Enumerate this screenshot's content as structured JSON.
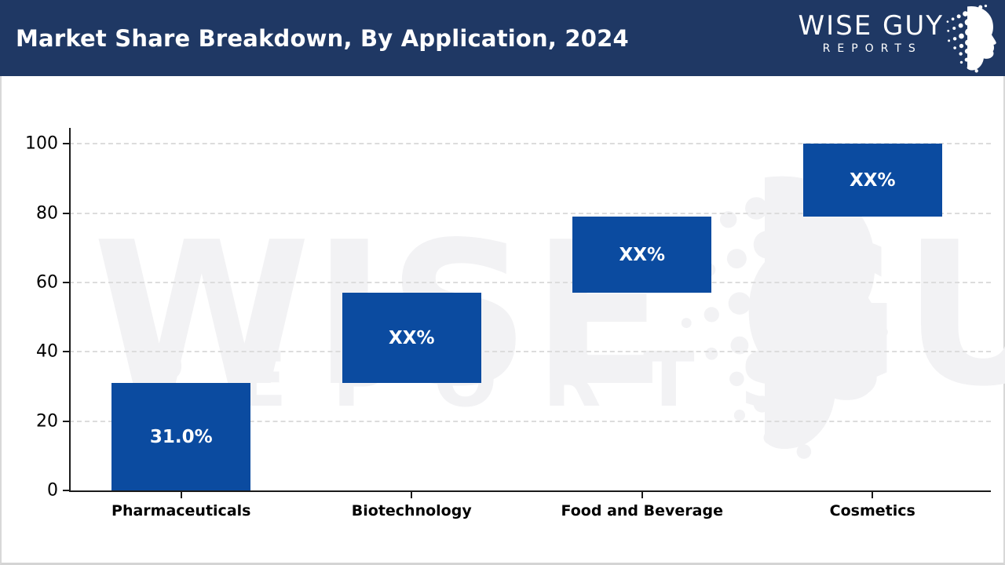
{
  "header": {
    "title": "Market Share Breakdown, By Application, 2024",
    "bg_color": "#1f3864",
    "logo": {
      "line1": "WISE GUY",
      "line2": "REPORTS"
    }
  },
  "watermark": {
    "line1": "WISE GUY",
    "line2": "REPORTS"
  },
  "chart_data": {
    "type": "bar",
    "variant": "waterfall",
    "title": "Market Share Breakdown, By Application, 2024",
    "categories": [
      "Pharmaceuticals",
      "Biotechnology",
      "Food and Beverage",
      "Cosmetics"
    ],
    "segments": [
      {
        "category": "Pharmaceuticals",
        "start": 0,
        "end": 31,
        "value": 31,
        "label": "31.0%"
      },
      {
        "category": "Biotechnology",
        "start": 31,
        "end": 57,
        "value": 26,
        "label": "XX%"
      },
      {
        "category": "Food and Beverage",
        "start": 57,
        "end": 79,
        "value": 22,
        "label": "XX%"
      },
      {
        "category": "Cosmetics",
        "start": 79,
        "end": 100,
        "value": 21,
        "label": "XX%"
      }
    ],
    "xlabel": "",
    "ylabel": "",
    "yticks": [
      0,
      20,
      40,
      60,
      80,
      100
    ],
    "ylim": [
      0,
      104.6
    ],
    "grid": {
      "axis": "y",
      "style": "dashed",
      "color": "#dcdcdc"
    },
    "legend": null,
    "bar_color": "#0b4ba0",
    "bar_label_color": "#ffffff",
    "axis_color": "#1a1a1a"
  }
}
